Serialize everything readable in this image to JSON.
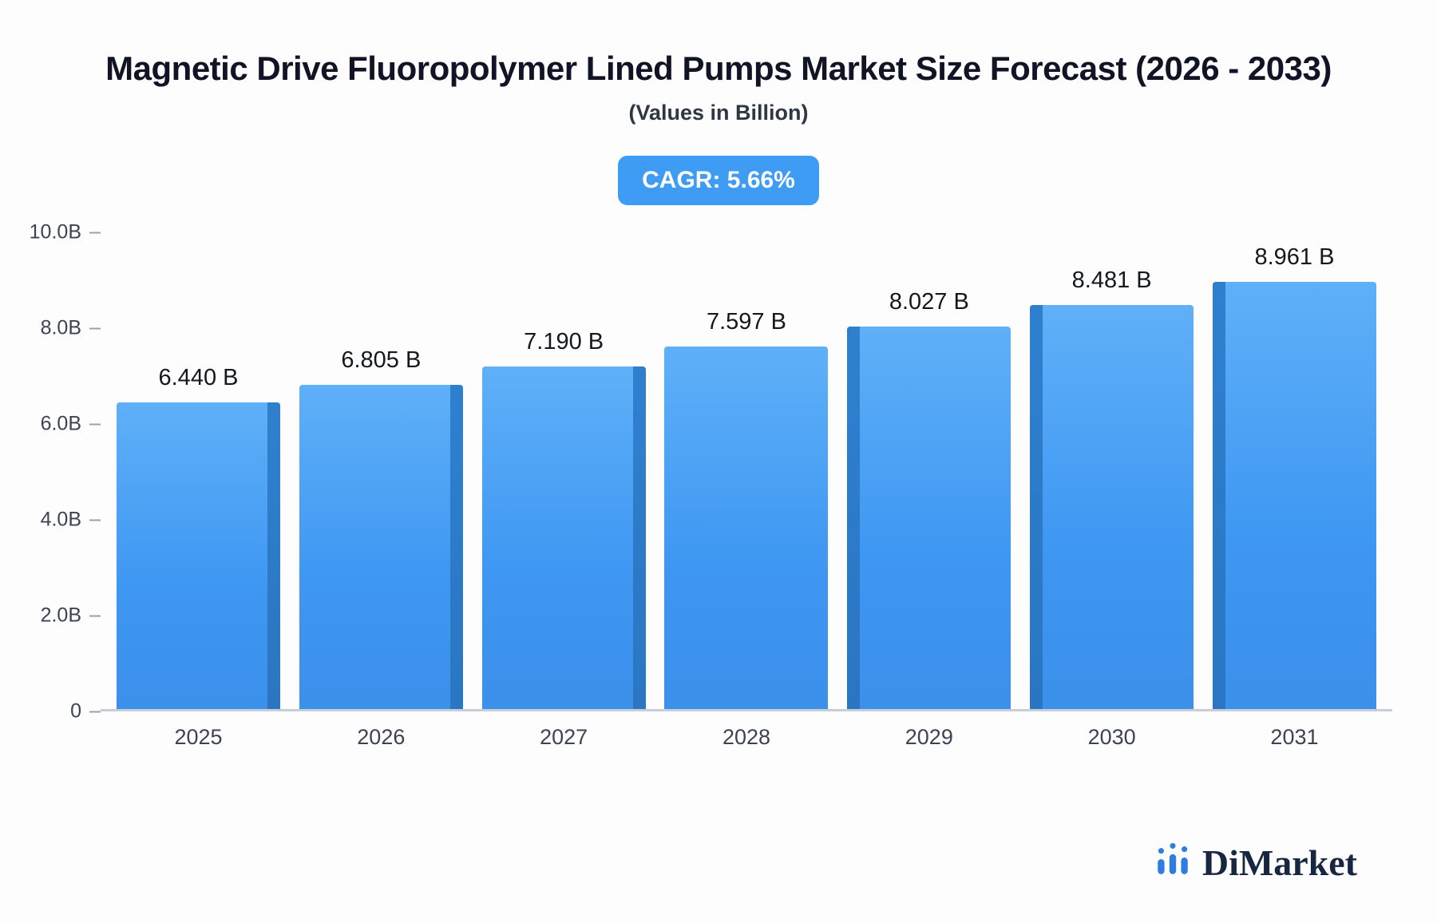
{
  "title": "Magnetic Drive Fluoropolymer Lined Pumps Market Size Forecast (2026 - 2033)",
  "subtitle": "(Values in Billion)",
  "badge": {
    "label": "CAGR: 5.66%"
  },
  "chart_data": {
    "type": "bar",
    "categories": [
      "2025",
      "2026",
      "2027",
      "2028",
      "2029",
      "2030",
      "2031"
    ],
    "values": [
      6.44,
      6.805,
      7.19,
      7.597,
      8.027,
      8.481,
      8.961
    ],
    "value_labels": [
      "6.440 B",
      "6.805 B",
      "7.190 B",
      "7.597 B",
      "8.027 B",
      "8.481 B",
      "8.961 B"
    ],
    "title": "Magnetic Drive Fluoropolymer Lined Pumps Market Size Forecast (2026 - 2033)",
    "xlabel": "",
    "ylabel": "",
    "ylim": [
      0,
      10
    ],
    "ytick_labels": [
      "10.0B",
      "8.0B",
      "6.0B",
      "4.0B",
      "2.0B",
      "0"
    ],
    "ytick_values": [
      10,
      8,
      6,
      4,
      2,
      0
    ],
    "grid": false,
    "legend": false,
    "bar_color": "#3e97f2",
    "bar_side_color": "#2a76c2",
    "badge_color": "#3f9cf4"
  },
  "logo": {
    "text": "DiMarket",
    "icon": "bar-chart-icon"
  }
}
